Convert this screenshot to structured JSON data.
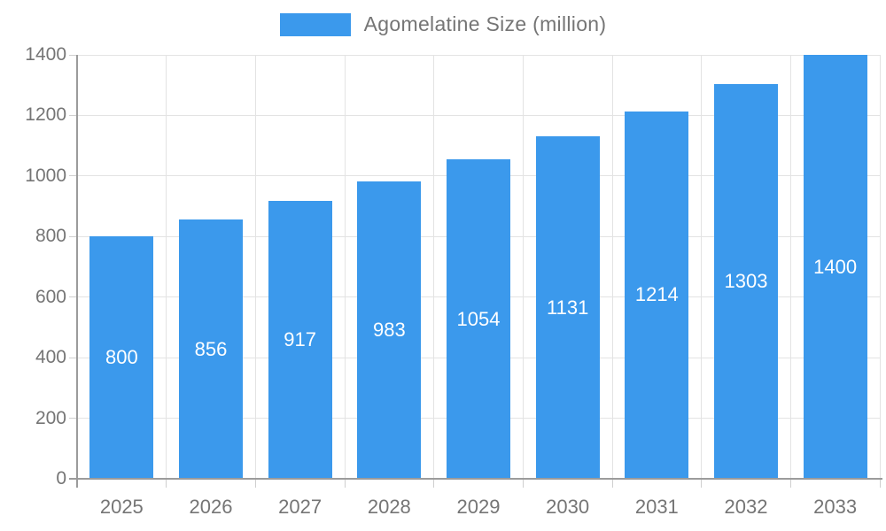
{
  "legend": {
    "label": "Agomelatine Size (million)"
  },
  "colors": {
    "bar": "#3B99EC",
    "grid": "#E3E3E3",
    "tick": "#CFCFCF",
    "axis": "#9B9B9B",
    "tick_text": "#757575",
    "value_label": "#FFFFFF"
  },
  "chart_data": {
    "type": "bar",
    "title": "",
    "xlabel": "",
    "ylabel": "",
    "categories": [
      "2025",
      "2026",
      "2027",
      "2028",
      "2029",
      "2030",
      "2031",
      "2032",
      "2033"
    ],
    "series": [
      {
        "name": "Agomelatine Size (million)",
        "values": [
          800,
          856,
          917,
          983,
          1054,
          1131,
          1214,
          1303,
          1400
        ]
      }
    ],
    "ylim": [
      0,
      1400
    ],
    "yticks": [
      0,
      200,
      400,
      600,
      800,
      1000,
      1200,
      1400
    ],
    "grid": true,
    "legend_position": "top",
    "value_labels": "inside-center"
  }
}
